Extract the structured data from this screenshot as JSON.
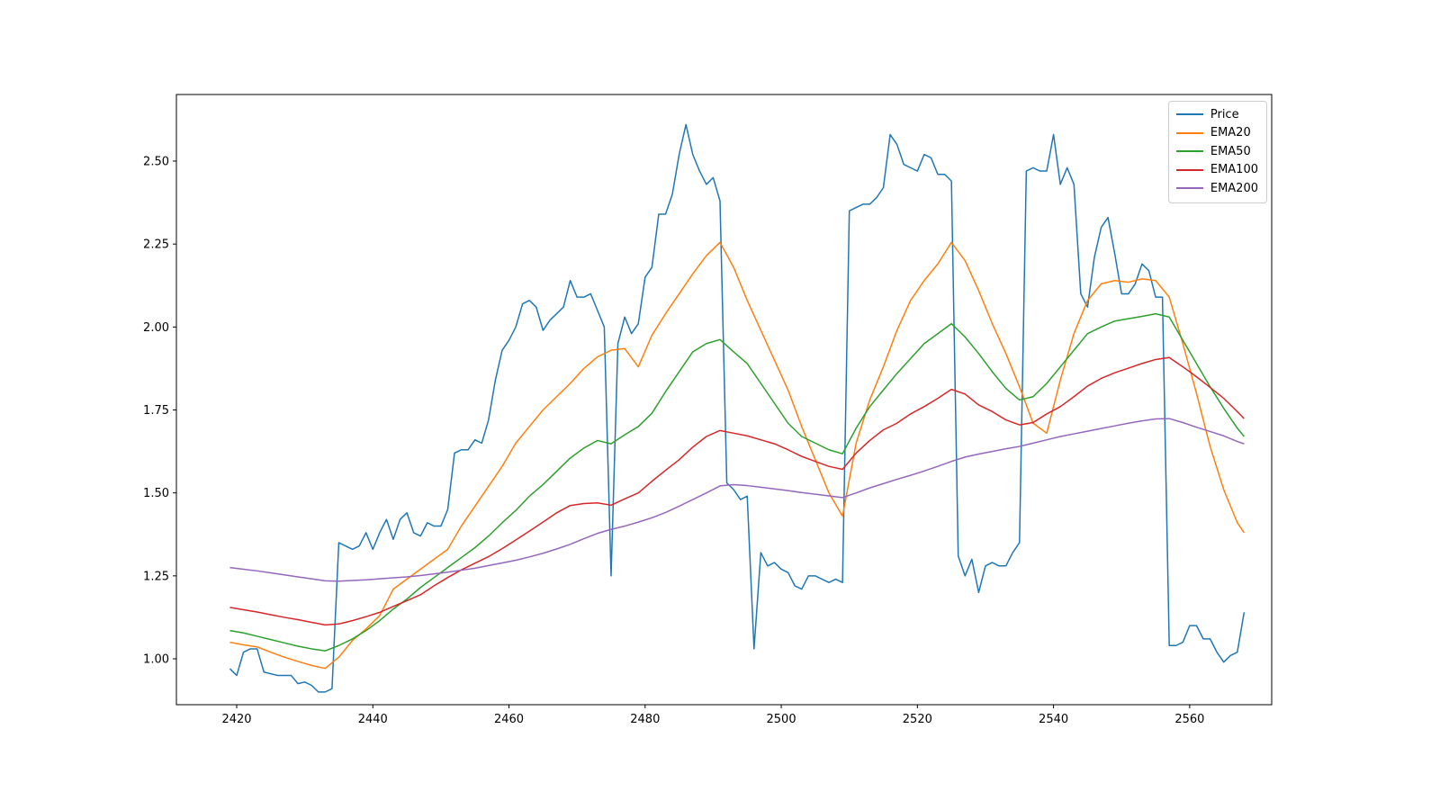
{
  "figure": {
    "background": "#ffffff"
  },
  "chart_data": {
    "type": "line",
    "title": "",
    "xlabel": "",
    "ylabel": "",
    "grid": false,
    "legend_position": "upper right",
    "xlim": [
      2411.14,
      2572.05
    ],
    "ylim": [
      0.8617,
      2.7007
    ],
    "x_ticks": [
      2420,
      2440,
      2460,
      2480,
      2500,
      2520,
      2540,
      2560
    ],
    "y_ticks": [
      1.0,
      1.25,
      1.5,
      1.75,
      2.0,
      2.25,
      2.5
    ],
    "series": [
      {
        "name": "Price",
        "color": "#1f77b4",
        "x_start": 2419,
        "x_step": 1,
        "y": [
          0.97,
          0.95,
          1.02,
          1.03,
          1.03,
          0.96,
          0.955,
          0.95,
          0.95,
          0.95,
          0.925,
          0.93,
          0.92,
          0.9,
          0.9,
          0.91,
          1.35,
          1.34,
          1.33,
          1.34,
          1.38,
          1.33,
          1.38,
          1.42,
          1.36,
          1.42,
          1.44,
          1.38,
          1.37,
          1.41,
          1.4,
          1.4,
          1.45,
          1.62,
          1.63,
          1.63,
          1.66,
          1.65,
          1.72,
          1.84,
          1.93,
          1.96,
          2.0,
          2.07,
          2.08,
          2.06,
          1.99,
          2.02,
          2.04,
          2.06,
          2.14,
          2.09,
          2.09,
          2.1,
          2.05,
          2.0,
          1.25,
          1.95,
          2.03,
          1.98,
          2.01,
          2.15,
          2.18,
          2.34,
          2.34,
          2.4,
          2.52,
          2.61,
          2.52,
          2.47,
          2.43,
          2.45,
          2.38,
          1.53,
          1.51,
          1.48,
          1.49,
          1.03,
          1.32,
          1.28,
          1.29,
          1.27,
          1.26,
          1.22,
          1.21,
          1.25,
          1.25,
          1.24,
          1.23,
          1.24,
          1.23,
          2.35,
          2.36,
          2.37,
          2.37,
          2.39,
          2.42,
          2.58,
          2.55,
          2.49,
          2.48,
          2.47,
          2.52,
          2.51,
          2.46,
          2.46,
          2.44,
          1.31,
          1.25,
          1.3,
          1.2,
          1.28,
          1.29,
          1.28,
          1.28,
          1.32,
          1.35,
          2.47,
          2.48,
          2.47,
          2.47,
          2.58,
          2.43,
          2.48,
          2.43,
          2.1,
          2.06,
          2.21,
          2.3,
          2.33,
          2.22,
          2.1,
          2.1,
          2.13,
          2.19,
          2.17,
          2.09,
          2.09,
          1.04,
          1.04,
          1.05,
          1.1,
          1.1,
          1.06,
          1.06,
          1.02,
          0.99,
          1.01,
          1.02,
          1.14
        ]
      },
      {
        "name": "EMA20",
        "color": "#ff7f0e",
        "x_start": 2419,
        "x_step": 2,
        "x_extra": [
          2568
        ],
        "y": [
          1.05,
          1.042,
          1.036,
          1.02,
          1.005,
          0.992,
          0.98,
          0.971,
          1.005,
          1.055,
          1.09,
          1.13,
          1.21,
          1.24,
          1.27,
          1.3,
          1.33,
          1.4,
          1.46,
          1.52,
          1.58,
          1.65,
          1.7,
          1.75,
          1.79,
          1.83,
          1.875,
          1.91,
          1.93,
          1.935,
          1.88,
          1.975,
          2.04,
          2.1,
          2.16,
          2.215,
          2.255,
          2.18,
          2.08,
          1.99,
          1.9,
          1.81,
          1.7,
          1.6,
          1.5,
          1.43,
          1.65,
          1.78,
          1.88,
          1.99,
          2.08,
          2.14,
          2.19,
          2.255,
          2.2,
          2.11,
          2.01,
          1.92,
          1.82,
          1.71,
          1.68,
          1.84,
          1.98,
          2.08,
          2.13,
          2.14,
          2.135,
          2.145,
          2.14,
          2.09,
          1.95,
          1.8,
          1.64,
          1.51,
          1.41,
          1.38
        ]
      },
      {
        "name": "EMA50",
        "color": "#2ca02c",
        "x_start": 2419,
        "x_step": 2,
        "x_extra": [
          2568
        ],
        "y": [
          1.085,
          1.078,
          1.068,
          1.058,
          1.048,
          1.038,
          1.03,
          1.024,
          1.04,
          1.06,
          1.085,
          1.115,
          1.15,
          1.18,
          1.215,
          1.245,
          1.275,
          1.305,
          1.335,
          1.37,
          1.41,
          1.447,
          1.49,
          1.525,
          1.565,
          1.605,
          1.635,
          1.658,
          1.648,
          1.675,
          1.7,
          1.74,
          1.805,
          1.865,
          1.925,
          1.95,
          1.962,
          1.925,
          1.89,
          1.83,
          1.77,
          1.71,
          1.67,
          1.65,
          1.63,
          1.618,
          1.695,
          1.76,
          1.81,
          1.86,
          1.905,
          1.95,
          1.98,
          2.01,
          1.97,
          1.92,
          1.865,
          1.815,
          1.78,
          1.79,
          1.83,
          1.88,
          1.93,
          1.98,
          2.0,
          2.018,
          2.025,
          2.032,
          2.04,
          2.03,
          1.96,
          1.89,
          1.82,
          1.755,
          1.695,
          1.67
        ]
      },
      {
        "name": "EMA100",
        "color": "#d62728",
        "x_start": 2419,
        "x_step": 2,
        "x_extra": [
          2568
        ],
        "y": [
          1.155,
          1.148,
          1.141,
          1.133,
          1.125,
          1.118,
          1.11,
          1.102,
          1.105,
          1.115,
          1.127,
          1.14,
          1.158,
          1.175,
          1.193,
          1.22,
          1.245,
          1.268,
          1.288,
          1.308,
          1.332,
          1.358,
          1.385,
          1.412,
          1.44,
          1.462,
          1.468,
          1.47,
          1.463,
          1.482,
          1.5,
          1.535,
          1.568,
          1.6,
          1.638,
          1.67,
          1.688,
          1.68,
          1.672,
          1.66,
          1.648,
          1.63,
          1.61,
          1.595,
          1.58,
          1.571,
          1.62,
          1.658,
          1.69,
          1.71,
          1.738,
          1.76,
          1.785,
          1.812,
          1.798,
          1.765,
          1.745,
          1.72,
          1.705,
          1.712,
          1.738,
          1.76,
          1.79,
          1.822,
          1.845,
          1.862,
          1.876,
          1.89,
          1.902,
          1.908,
          1.88,
          1.85,
          1.818,
          1.785,
          1.745,
          1.724
        ]
      },
      {
        "name": "EMA200",
        "color": "#9467bd",
        "x_start": 2419,
        "x_step": 2,
        "x_extra": [
          2568
        ],
        "y": [
          1.275,
          1.27,
          1.265,
          1.259,
          1.253,
          1.247,
          1.241,
          1.235,
          1.234,
          1.236,
          1.238,
          1.241,
          1.244,
          1.247,
          1.251,
          1.256,
          1.261,
          1.267,
          1.273,
          1.281,
          1.289,
          1.297,
          1.307,
          1.318,
          1.331,
          1.345,
          1.362,
          1.378,
          1.39,
          1.4,
          1.412,
          1.425,
          1.441,
          1.46,
          1.48,
          1.5,
          1.521,
          1.525,
          1.522,
          1.517,
          1.512,
          1.507,
          1.501,
          1.496,
          1.491,
          1.486,
          1.5,
          1.515,
          1.528,
          1.541,
          1.553,
          1.566,
          1.58,
          1.595,
          1.608,
          1.617,
          1.625,
          1.633,
          1.64,
          1.65,
          1.66,
          1.67,
          1.678,
          1.686,
          1.694,
          1.702,
          1.71,
          1.717,
          1.723,
          1.724,
          1.712,
          1.698,
          1.685,
          1.672,
          1.655,
          1.648
        ]
      }
    ]
  }
}
